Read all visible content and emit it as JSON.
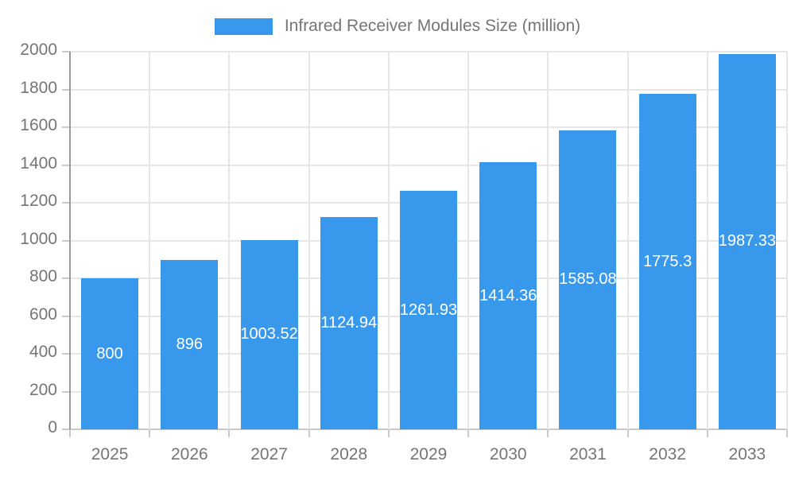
{
  "chart_data": {
    "type": "bar",
    "title": "",
    "legend": "Infrared Receiver Modules Size (million)",
    "legend_position": "top-center",
    "categories": [
      "2025",
      "2026",
      "2027",
      "2028",
      "2029",
      "2030",
      "2031",
      "2032",
      "2033"
    ],
    "values": [
      800,
      896,
      1003.52,
      1124.94,
      1261.93,
      1414.36,
      1585.08,
      1775.3,
      1987.33
    ],
    "value_labels": [
      "800",
      "896",
      "1003.52",
      "1124.94",
      "1261.93",
      "1414.36",
      "1585.08",
      "1775.3",
      "1987.33"
    ],
    "xlabel": "",
    "ylabel": "",
    "ylim": [
      0,
      2000
    ],
    "ytick_step": 200,
    "yticks": [
      "0",
      "200",
      "400",
      "600",
      "800",
      "1000",
      "1200",
      "1400",
      "1600",
      "1800",
      "2000"
    ],
    "grid": true,
    "colors": {
      "bar": "#3899EC",
      "axis_label": "#757575",
      "gridline": "#e6e6e6",
      "baseline": "#c9c9c9",
      "tick": "#c9c9c9",
      "y_axis_line": "#999999",
      "data_label": "#ffffff",
      "background": "#ffffff"
    }
  }
}
